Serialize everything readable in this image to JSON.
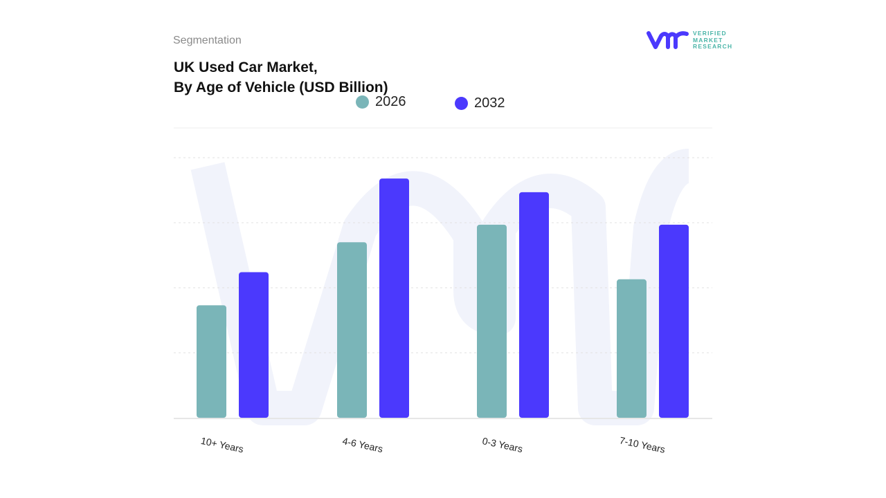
{
  "header": {
    "segment_label": "Segmentation",
    "title_line1": "UK Used Car Market,",
    "title_line2": "By Age of Vehicle (USD Billion)"
  },
  "logo": {
    "line1": "VERIFIED",
    "line2": "MARKET",
    "line3": "RESEARCH"
  },
  "chart_data": {
    "type": "bar",
    "title": "UK Used Car Market, By Age of Vehicle (USD Billion)",
    "categories": [
      "10+ Years",
      "4-6 Years",
      "0-3 Years",
      "7-10 Years"
    ],
    "series": [
      {
        "name": "2026",
        "color": "#7ab5b8",
        "values": [
          1.73,
          2.7,
          2.97,
          2.13
        ]
      },
      {
        "name": "2032",
        "color": "#4b39fd",
        "values": [
          2.24,
          3.68,
          3.47,
          2.97
        ]
      }
    ],
    "ylim": [
      0,
      4.5
    ],
    "grid": true,
    "legend": "top-center",
    "y_tick_labels_shown": false
  }
}
